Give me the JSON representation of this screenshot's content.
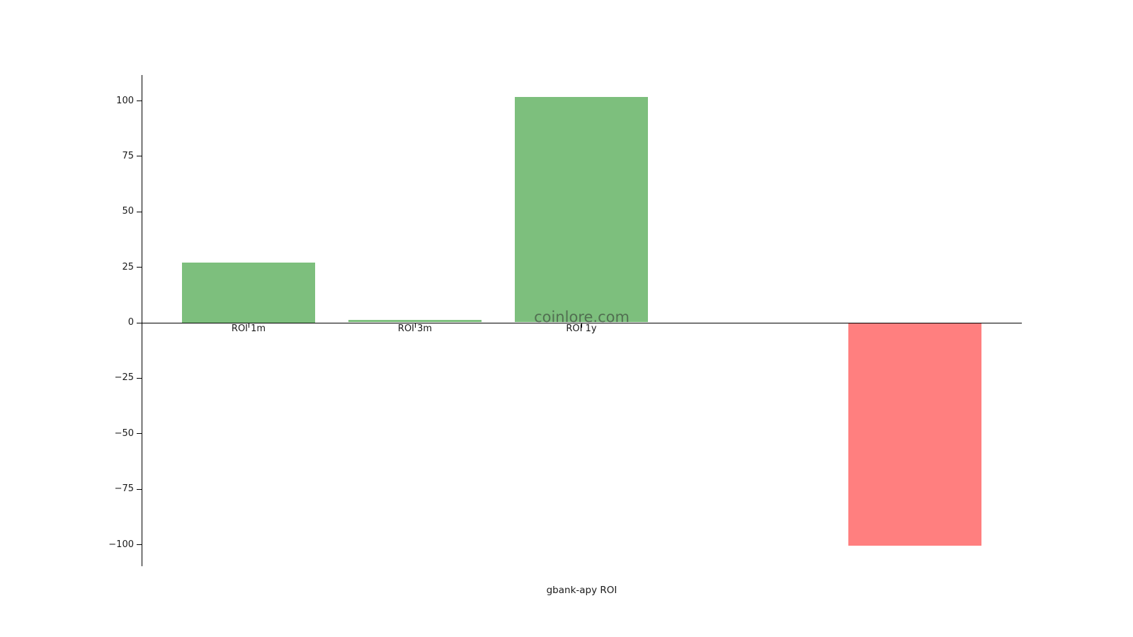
{
  "chart_data": {
    "type": "bar",
    "title": "gbank-apy ROI",
    "categories": [
      "ROI 1m",
      "ROI 3m",
      "ROI 1y",
      "",
      ""
    ],
    "values": [
      27,
      1.1,
      101.5,
      null,
      -100
    ],
    "bar_colors": [
      "#7dbf7d",
      "#7dbf7d",
      "#7dbf7d",
      null,
      "#ff7f7f"
    ],
    "positive_color": "#7dbf7d",
    "negative_color": "#ff7f7f",
    "axis_color": "#000000",
    "yticks": [
      100,
      75,
      50,
      25,
      0,
      -25,
      -50,
      -75,
      -100
    ],
    "ylim": [
      -110.1,
      111.6
    ],
    "grid": false,
    "legend": false,
    "xlabel": "gbank-apy ROI",
    "ylabel": "",
    "watermark": "coinlore.com",
    "watermark_color": "#8f8f8f"
  }
}
